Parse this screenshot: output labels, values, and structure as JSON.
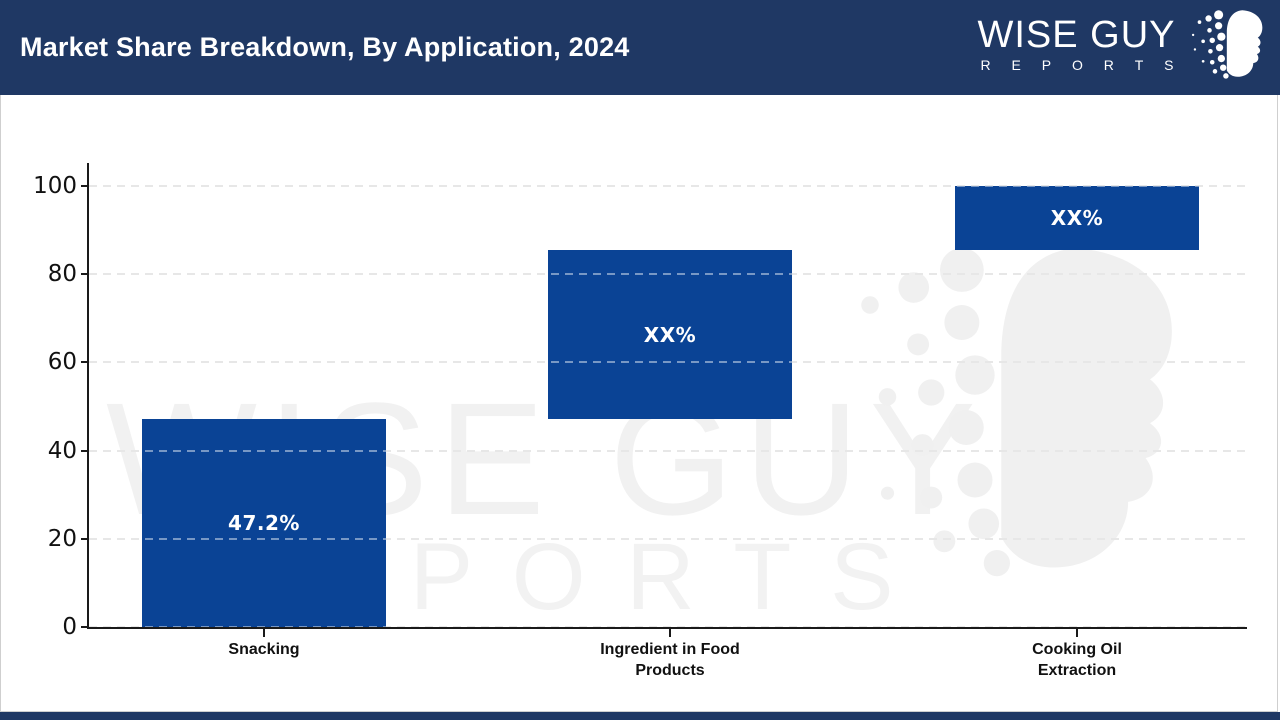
{
  "header": {
    "title": "Market Share Breakdown, By Application, 2024",
    "logo": {
      "primary": "WISE GUY",
      "secondary": "REPORTS"
    }
  },
  "watermark": {
    "primary": "WISE GUY",
    "secondary": "R E P O R T S"
  },
  "colors": {
    "header_bg": "#1f3864",
    "footer_bg": "#1f3864",
    "bar": "#0a4395",
    "bar_label_text": "#ffffff",
    "gridline": "#d4d4d4",
    "axis": "#1a1a1a",
    "tick_label": "#111111",
    "watermark": "#f1f1f1"
  },
  "chart_data": {
    "type": "bar",
    "subtype": "floating-waterfall",
    "title": "Market Share Breakdown, By Application, 2024",
    "categories": [
      "Snacking",
      "Ingredient in Food\nProducts",
      "Cooking Oil\nExtraction"
    ],
    "series": [
      {
        "name": "Market share (%)",
        "segments": [
          {
            "category": "Snacking",
            "start": 0,
            "end": 47.2,
            "label": "47.2%"
          },
          {
            "category": "Ingredient in Food Products",
            "start": 47.2,
            "end": 85.5,
            "label": "XX%"
          },
          {
            "category": "Cooking Oil Extraction",
            "start": 85.5,
            "end": 100,
            "label": "XX%"
          }
        ]
      }
    ],
    "xlabel": "",
    "ylabel": "",
    "yticks": [
      0,
      20,
      40,
      60,
      80,
      100
    ],
    "ylim": [
      0,
      104.8
    ],
    "grid": "horizontal-dashed",
    "legend": "none"
  }
}
